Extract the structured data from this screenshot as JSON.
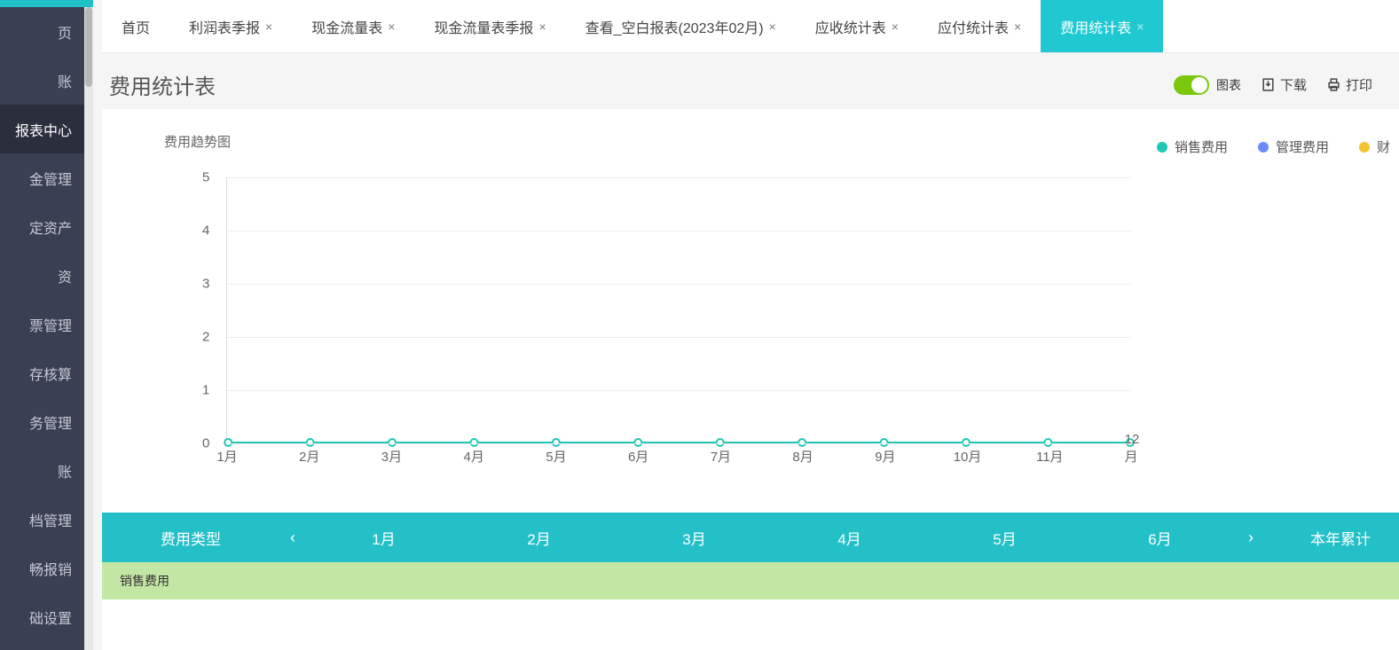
{
  "sidebar": {
    "items": [
      {
        "label": "页"
      },
      {
        "label": "账"
      },
      {
        "label": "报表中心"
      },
      {
        "label": "金管理"
      },
      {
        "label": "定资产"
      },
      {
        "label": "资"
      },
      {
        "label": "票管理"
      },
      {
        "label": "存核算"
      },
      {
        "label": "务管理"
      },
      {
        "label": "账"
      },
      {
        "label": "档管理"
      },
      {
        "label": "畅报销"
      },
      {
        "label": "础设置"
      }
    ],
    "active_index": 2
  },
  "tabs": [
    {
      "label": "首页",
      "closable": false
    },
    {
      "label": "利润表季报",
      "closable": true
    },
    {
      "label": "现金流量表",
      "closable": true
    },
    {
      "label": "现金流量表季报",
      "closable": true
    },
    {
      "label": "查看_空白报表(2023年02月)",
      "closable": true
    },
    {
      "label": "应收统计表",
      "closable": true
    },
    {
      "label": "应付统计表",
      "closable": true
    },
    {
      "label": "费用统计表",
      "closable": true
    }
  ],
  "tabs_active_index": 7,
  "page": {
    "title": "费用统计表",
    "toggle_label": "图表",
    "download_label": "下载",
    "print_label": "打印"
  },
  "chart": {
    "title": "费用趋势图",
    "type": "line",
    "x_labels": [
      "1月",
      "2月",
      "3月",
      "4月",
      "5月",
      "6月",
      "7月",
      "8月",
      "9月",
      "10月",
      "11月",
      "12月"
    ],
    "y_ticks": [
      0,
      1,
      2,
      3,
      4,
      5
    ],
    "ylim": [
      0,
      5
    ],
    "series": [
      {
        "name": "销售费用",
        "color": "#1fc8b3",
        "values": [
          0,
          0,
          0,
          0,
          0,
          0,
          0,
          0,
          0,
          0,
          0,
          0
        ]
      }
    ],
    "legend": [
      {
        "name": "销售费用",
        "color": "#1fc8b3"
      },
      {
        "name": "管理费用",
        "color": "#6a8cff"
      },
      {
        "name": "财",
        "color": "#f4c430"
      }
    ],
    "grid_color": "#eeeeee",
    "axis_color": "#dddddd",
    "background": "#ffffff",
    "marker": {
      "shape": "circle",
      "radius": 4,
      "fill": "#ffffff",
      "stroke_width": 2
    },
    "line_width": 2
  },
  "table": {
    "header_bg": "#24c0c8",
    "header_color": "#ffffff",
    "row_bg": "#c4e6a5",
    "type_header": "费用类型",
    "months": [
      "1月",
      "2月",
      "3月",
      "4月",
      "5月",
      "6月"
    ],
    "total_header": "本年累计",
    "rows": [
      {
        "type": "销售费用",
        "cells": [
          "",
          "",
          "",
          "",
          "",
          ""
        ]
      }
    ]
  }
}
